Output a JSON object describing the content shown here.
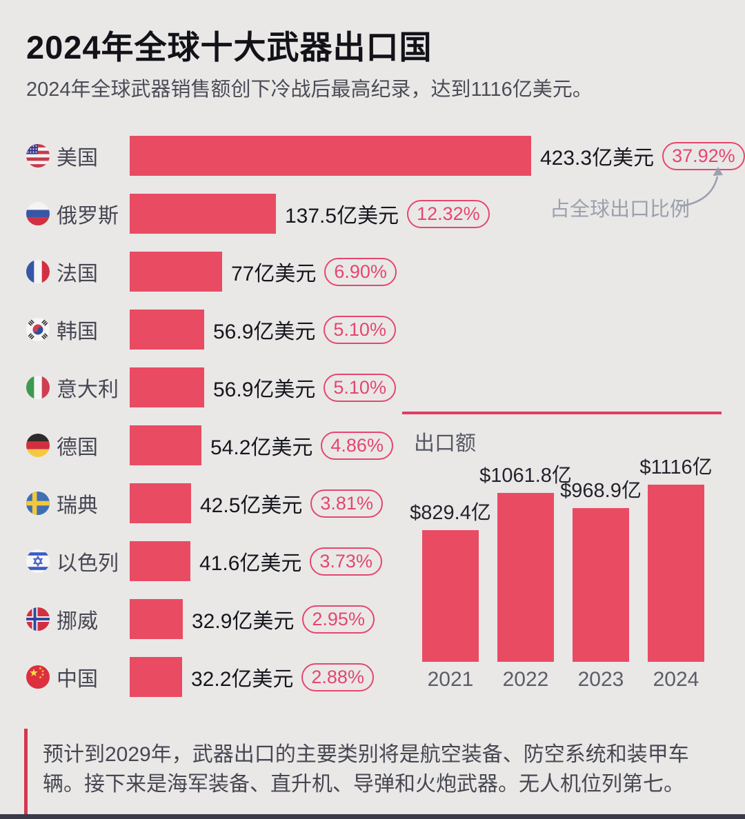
{
  "header": {
    "title": "2024年全球十大武器出口国",
    "subtitle": "2024年全球武器销售额创下冷战后最高纪录，达到1116亿美元。"
  },
  "colors": {
    "background": "#e9e8e7",
    "bar_pink": "#e94b63",
    "badge_pink": "#e5466e",
    "divider_pink": "#e43a60",
    "accent_red": "#d4374f",
    "bottom_bar_dark": "#3a3a4a",
    "annotation_gray": "#9aa0ac"
  },
  "chart_data": [
    {
      "id": "top-exporters-2024",
      "type": "bar",
      "orientation": "horizontal",
      "categories": [
        "美国",
        "俄罗斯",
        "法国",
        "韩国",
        "意大利",
        "德国",
        "瑞典",
        "以色列",
        "挪威",
        "中国"
      ],
      "flags": [
        "us",
        "ru",
        "fr",
        "kr",
        "it",
        "de",
        "se",
        "il",
        "no",
        "cn"
      ],
      "values": [
        423.3,
        137.5,
        77,
        56.9,
        56.9,
        54.2,
        42.5,
        41.6,
        32.9,
        32.2
      ],
      "value_labels": [
        "423.3亿美元",
        "137.5亿美元",
        "77亿美元",
        "56.9亿美元",
        "56.9亿美元",
        "54.2亿美元",
        "42.5亿美元",
        "41.6亿美元",
        "32.9亿美元",
        "32.2亿美元"
      ],
      "shares": [
        37.92,
        12.32,
        6.9,
        5.1,
        5.1,
        4.86,
        3.81,
        3.73,
        2.95,
        2.88
      ],
      "share_labels": [
        "37.92%",
        "12.32%",
        "6.90%",
        "5.10%",
        "5.10%",
        "4.86%",
        "3.81%",
        "3.73%",
        "2.95%",
        "2.88%"
      ],
      "unit": "亿美元",
      "annotation": "占全球出口比例"
    },
    {
      "id": "export-by-year",
      "type": "bar",
      "title": "出口额",
      "categories": [
        "2021",
        "2022",
        "2023",
        "2024"
      ],
      "values": [
        829.4,
        1061.8,
        968.9,
        1116
      ],
      "value_labels": [
        "$829.4亿",
        "$1061.8亿",
        "$968.9亿",
        "$1116亿"
      ],
      "ylim": [
        0,
        1116
      ],
      "grid": false,
      "legend": false
    }
  ],
  "footnote": {
    "text": "预计到2029年，武器出口的主要类别将是航空装备、防空系统和装甲车辆。接下来是海军装备、直升机、导弹和火炮武器。无人机位列第七。"
  }
}
